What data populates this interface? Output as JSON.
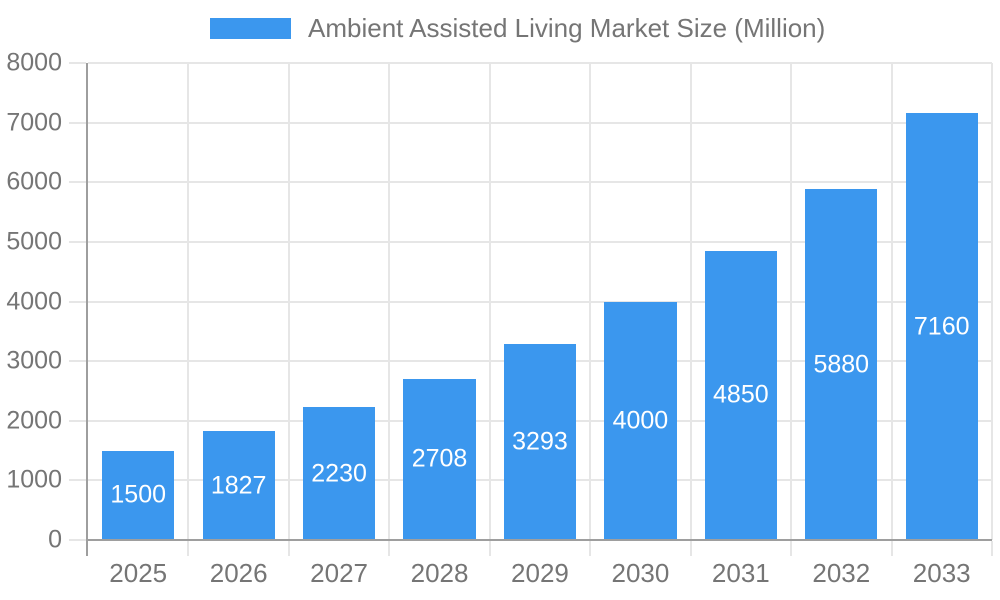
{
  "legend": {
    "label": "Ambient Assisted Living Market Size (Million)",
    "swatch_color": "#3B97EE"
  },
  "chart_data": {
    "type": "bar",
    "title": "Ambient Assisted Living Market Size (Million)",
    "categories": [
      "2025",
      "2026",
      "2027",
      "2028",
      "2029",
      "2030",
      "2031",
      "2032",
      "2033"
    ],
    "values": [
      1500,
      1827,
      2230,
      2708,
      3293,
      4000,
      4850,
      5880,
      7160
    ],
    "xlabel": "",
    "ylabel": "",
    "ylim": [
      0,
      8000
    ],
    "ytick_step": 1000,
    "ytick_labels": [
      "0",
      "1000",
      "2000",
      "3000",
      "4000",
      "5000",
      "6000",
      "7000",
      "8000"
    ],
    "grid": true,
    "legend_position": "top",
    "bar_color": "#3B97EE",
    "value_label_color": "#FFFFFF",
    "tick_label_color": "#757575",
    "axis_line_color": "#9E9E9E",
    "gridline_color": "#E6E6E6",
    "background_color": "#FFFFFF"
  }
}
